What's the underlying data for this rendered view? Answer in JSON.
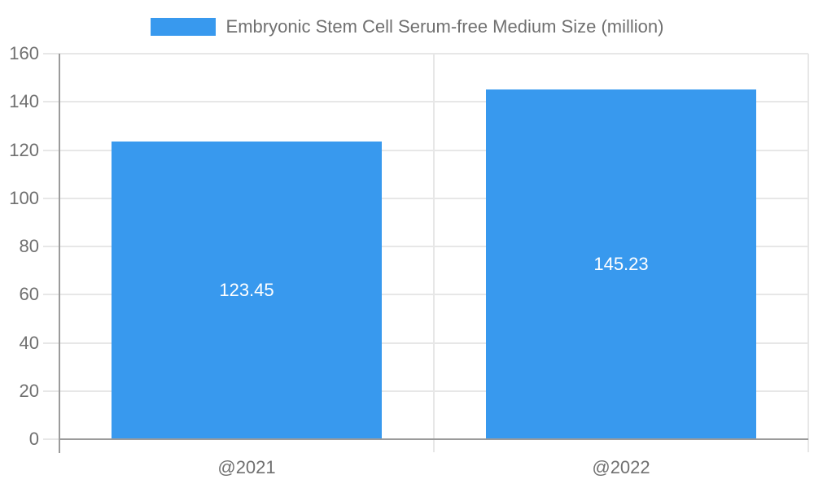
{
  "legend": {
    "label": "Embryonic Stem Cell Serum-free Medium Size (million)"
  },
  "colors": {
    "background": "#ffffff",
    "bar": "#3899ee",
    "grid": "#e7e7e7",
    "axis": "#9b9b9b",
    "label": "#707070",
    "value_label": "#ffffff"
  },
  "chart_data": {
    "type": "bar",
    "categories": [
      "@2021",
      "@2022"
    ],
    "series": [
      {
        "name": "Embryonic Stem Cell Serum-free Medium Size (million)",
        "values": [
          123.45,
          145.23
        ]
      }
    ],
    "value_labels": [
      "123.45",
      "145.23"
    ],
    "title": "",
    "xlabel": "",
    "ylabel": "",
    "ylim": [
      0,
      160
    ],
    "ytick_step": 20,
    "yticks": [
      0,
      20,
      40,
      60,
      80,
      100,
      120,
      140,
      160
    ],
    "legend_position": "top",
    "grid": true,
    "bar_width_fraction": 0.72
  }
}
